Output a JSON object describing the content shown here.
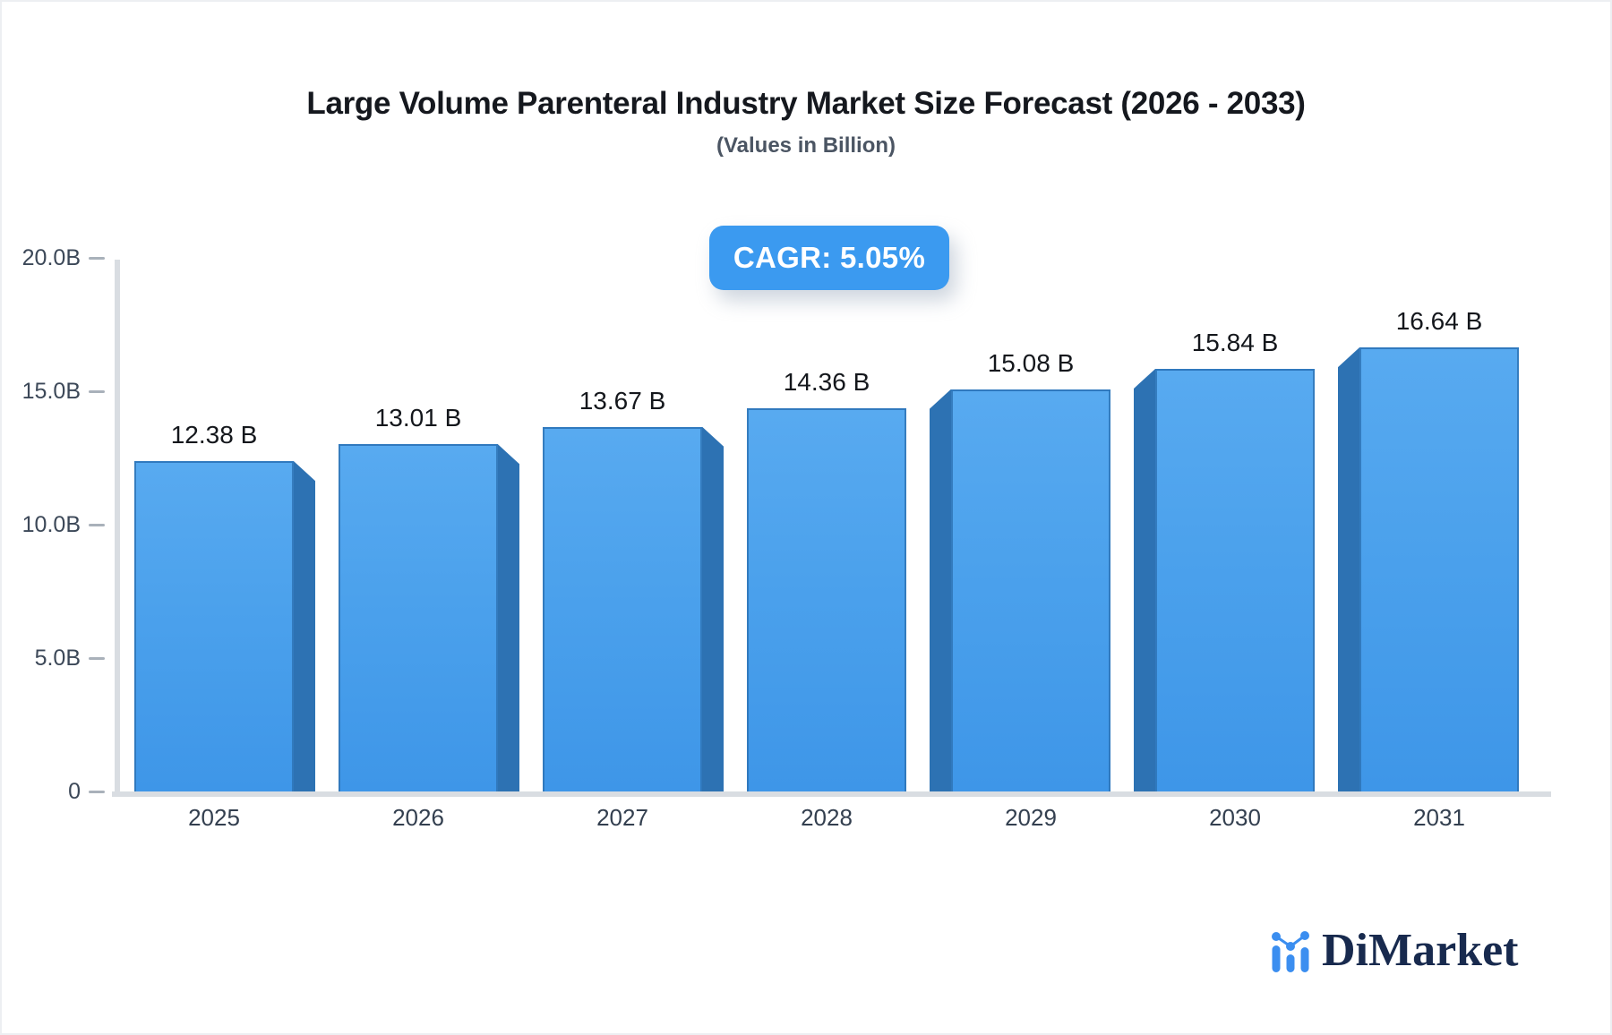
{
  "title": "Large Volume Parenteral Industry Market Size Forecast (2026 - 2033)",
  "subtitle": "(Values in Billion)",
  "badge": {
    "label": "CAGR: 5.05%"
  },
  "brand": {
    "name": "DiMarket",
    "icon": "bar-chart-logo-icon"
  },
  "colors": {
    "bar_face": "#4ba1ec",
    "bar_side": "#2d72b3",
    "badge_background": "#3b9af0",
    "badge_text": "#ffffff",
    "axis": "#d9dde2",
    "brand_navy": "#182a4e",
    "brand_blue": "#3b8ef0"
  },
  "chart_data": {
    "type": "bar",
    "title": "Large Volume Parenteral Industry Market Size Forecast (2026 - 2033)",
    "subtitle": "(Values in Billion)",
    "categories": [
      "2025",
      "2026",
      "2027",
      "2028",
      "2029",
      "2030",
      "2031"
    ],
    "values": [
      12.38,
      13.01,
      13.67,
      14.36,
      15.08,
      15.84,
      16.64
    ],
    "value_labels": [
      "12.38 B",
      "13.01 B",
      "13.67 B",
      "14.36 B",
      "15.08 B",
      "15.84 B",
      "16.64 B"
    ],
    "annotation": "CAGR: 5.05%",
    "xlabel": "",
    "ylabel": "",
    "ylim": [
      0,
      20
    ],
    "yticks": [
      {
        "value": 0,
        "label": "0"
      },
      {
        "value": 5,
        "label": "5.0B"
      },
      {
        "value": 10,
        "label": "10.0B"
      },
      {
        "value": 15,
        "label": "15.0B"
      },
      {
        "value": 20,
        "label": "20.0B"
      }
    ],
    "grid": false,
    "legend": false,
    "bar_style": "3d-center-perspective"
  }
}
